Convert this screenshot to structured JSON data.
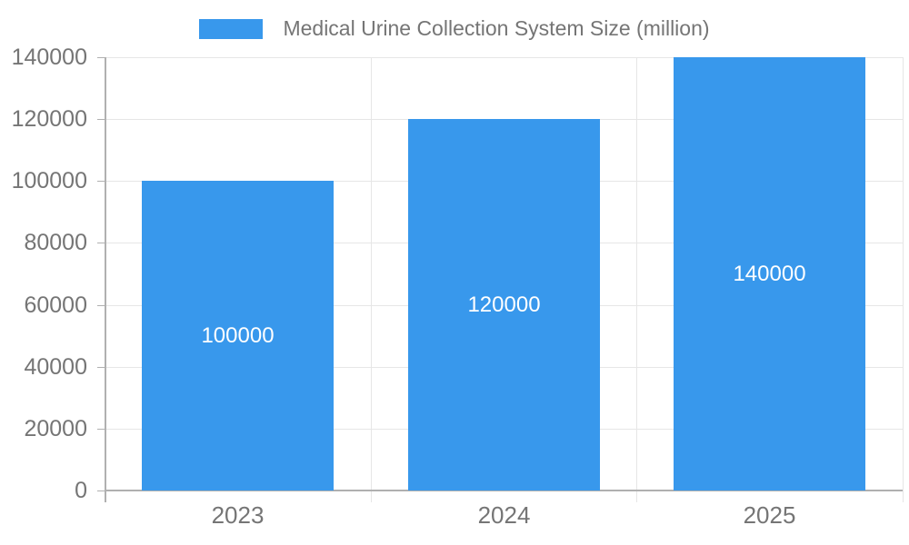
{
  "chart_data": {
    "type": "bar",
    "title": "",
    "legend": "Medical Urine Collection System Size (million)",
    "categories": [
      "2023",
      "2024",
      "2025"
    ],
    "values": [
      100000,
      120000,
      140000
    ],
    "value_labels": [
      "100000",
      "120000",
      "140000"
    ],
    "ylim": [
      0,
      140000
    ],
    "ytick_step": 20000,
    "ytick_labels": [
      "0",
      "20000",
      "40000",
      "60000",
      "80000",
      "100000",
      "120000",
      "140000"
    ],
    "xlabel": "",
    "ylabel": "",
    "grid": true,
    "legend_position": "top",
    "colors": {
      "bar": "#3898ec",
      "grid": "#e6e6e6",
      "axis": "#b0b0b0",
      "tick_text": "#757575",
      "bar_label": "#ffffff",
      "background": "#ffffff"
    }
  }
}
